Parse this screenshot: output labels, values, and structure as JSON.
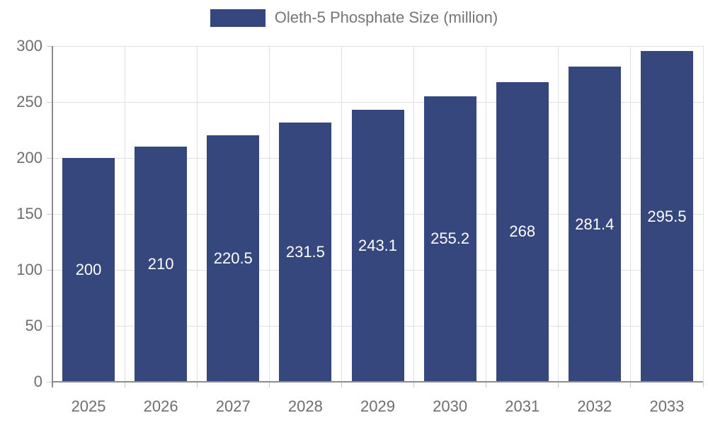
{
  "legend": {
    "label": "Oleth-5 Phosphate Size (million)"
  },
  "colors": {
    "bar": "#36477d",
    "value_label": "#ffffff",
    "axis_label": "#6e6e6e",
    "legend_text": "#757575",
    "grid_line": "#e0e0e0",
    "tick_line": "#c6c6c6",
    "axis_line": "#8c8c8c",
    "background": "#ffffff"
  },
  "chart_data": {
    "type": "bar",
    "title": "Oleth-5 Phosphate Size (million)",
    "series_name": "Oleth-5 Phosphate Size (million)",
    "categories": [
      "2025",
      "2026",
      "2027",
      "2028",
      "2029",
      "2030",
      "2031",
      "2032",
      "2033"
    ],
    "values": [
      200,
      210,
      220.5,
      231.5,
      243.1,
      255.2,
      268,
      281.4,
      295.5
    ],
    "xlabel": "",
    "ylabel": "",
    "ylim": [
      0,
      300
    ],
    "yticks": [
      0,
      50,
      100,
      150,
      200,
      250,
      300
    ],
    "grid": true,
    "legend_position": "top-center",
    "value_label_position": "inside-middle"
  }
}
